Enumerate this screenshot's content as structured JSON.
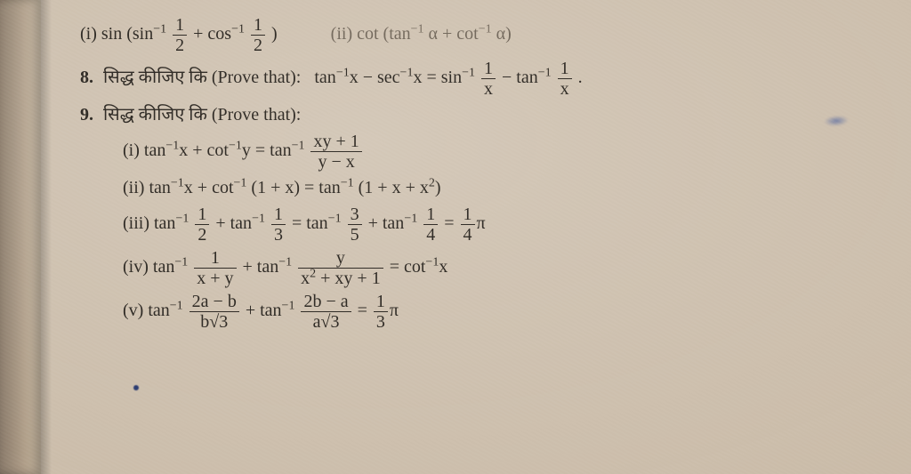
{
  "style": {
    "paper_bg": "#cdbfad",
    "ink": "#2d2924",
    "ink_faint": "#5b5248",
    "base_fontsize": 20,
    "math_fontsize": 20,
    "frac_border": "#2d2924"
  },
  "q7": {
    "i_label": "(i)",
    "i_expr_pre": "sin (sin",
    "i_sup1": "−1",
    "i_frac1_n": "1",
    "i_frac1_d": "2",
    "i_plus": " + cos",
    "i_sup2": "−1",
    "i_frac2_n": "1",
    "i_frac2_d": "2",
    "i_close": ")",
    "ii_label": "(ii)",
    "ii_expr": "cot (tan",
    "ii_sup1": "−1",
    "ii_mid": "α + cot",
    "ii_sup2": "−1",
    "ii_end": "α)"
  },
  "q8": {
    "num": "8.",
    "lead": "सिद्ध कीजिए कि (Prove that):",
    "lhs_a": "tan",
    "lhs_a_sup": "−1",
    "lhs_a_var": "x",
    "minus1": " − ",
    "lhs_b": "sec",
    "lhs_b_sup": "−1",
    "lhs_b_var": "x",
    "eq": " = ",
    "rhs_a": "sin",
    "rhs_a_sup": "−1",
    "rhs_a_frac_n": "1",
    "rhs_a_frac_d": "x",
    "minus2": " − ",
    "rhs_b": "tan",
    "rhs_b_sup": "−1",
    "rhs_b_frac_n": "1",
    "rhs_b_frac_d": "x",
    "period": "."
  },
  "q9": {
    "num": "9.",
    "lead": "सिद्ध कीजिए कि (Prove that):",
    "i": {
      "label": "(i)",
      "a": "tan",
      "a_sup": "−1",
      "a_var": "x",
      "plus": " + ",
      "b": "cot",
      "b_sup": "−1",
      "b_var": "y",
      "eq": " = ",
      "c": "tan",
      "c_sup": "−1",
      "c_frac_n": "xy + 1",
      "c_frac_d": "y − x"
    },
    "ii": {
      "label": "(ii)",
      "a": "tan",
      "a_sup": "−1",
      "a_var": "x",
      "plus": " + ",
      "b": "cot",
      "b_sup": "−1",
      "b_arg": "(1 + x)",
      "eq": " = ",
      "c": "tan",
      "c_sup": "−1",
      "c_arg_pre": "(1 + x + x",
      "c_arg_sup": "2",
      "c_arg_post": ")"
    },
    "iii": {
      "label": "(iii)",
      "t1": "tan",
      "t1_sup": "−1",
      "t1_n": "1",
      "t1_d": "2",
      "p1": " + ",
      "t2": "tan",
      "t2_sup": "−1",
      "t2_n": "1",
      "t2_d": "3",
      "eq1": " = ",
      "t3": "tan",
      "t3_sup": "−1",
      "t3_n": "3",
      "t3_d": "5",
      "p2": " + ",
      "t4": "tan",
      "t4_sup": "−1",
      "t4_n": "1",
      "t4_d": "4",
      "eq2": " = ",
      "r_n": "1",
      "r_d": "4",
      "r_pi": "π"
    },
    "iv": {
      "label": "(iv)",
      "t1": "tan",
      "t1_sup": "−1",
      "t1_n": "1",
      "t1_d": "x + y",
      "p1": " + ",
      "t2": "tan",
      "t2_sup": "−1",
      "t2_n": "y",
      "t2_d_pre": "x",
      "t2_d_sup": "2",
      "t2_d_post": " + xy + 1",
      "eq": " = ",
      "rhs": "cot",
      "rhs_sup": "−1",
      "rhs_var": "x"
    },
    "v": {
      "label": "(v)",
      "t1": "tan",
      "t1_sup": "−1",
      "t1_n": "2a − b",
      "t1_d": "b√3",
      "p1": " + ",
      "t2": "tan",
      "t2_sup": "−1",
      "t2_n": "2b − a",
      "t2_d": "a√3",
      "eq": " = ",
      "r_n": "1",
      "r_d": "3",
      "r_pi": "π"
    }
  }
}
